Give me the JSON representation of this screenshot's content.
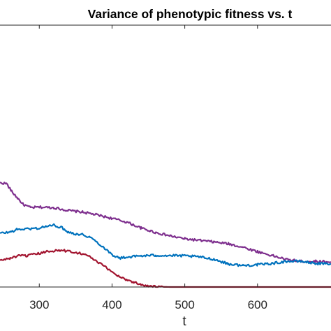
{
  "chart_data": {
    "type": "line",
    "title": "Variance of phenotypic fitness vs. t",
    "xlabel": "t",
    "ylabel": "",
    "xlim": [
      246,
      701
    ],
    "ylim": [
      0,
      1
    ],
    "x_ticks": [
      300,
      400,
      500,
      600
    ],
    "x_tick_labels": [
      "300",
      "400",
      "500",
      "600"
    ],
    "grid": false,
    "legend": "none",
    "series": [
      {
        "color": "#7E2F8E",
        "points": [
          [
            246,
            0.398
          ],
          [
            255,
            0.395
          ],
          [
            262,
            0.365
          ],
          [
            270,
            0.34
          ],
          [
            278,
            0.315
          ],
          [
            288,
            0.303
          ],
          [
            300,
            0.305
          ],
          [
            320,
            0.303
          ],
          [
            340,
            0.292
          ],
          [
            360,
            0.286
          ],
          [
            380,
            0.275
          ],
          [
            400,
            0.262
          ],
          [
            420,
            0.248
          ],
          [
            440,
            0.225
          ],
          [
            460,
            0.208
          ],
          [
            480,
            0.195
          ],
          [
            500,
            0.184
          ],
          [
            520,
            0.178
          ],
          [
            540,
            0.172
          ],
          [
            560,
            0.165
          ],
          [
            580,
            0.152
          ],
          [
            600,
            0.135
          ],
          [
            620,
            0.12
          ],
          [
            640,
            0.105
          ],
          [
            660,
            0.098
          ],
          [
            680,
            0.098
          ],
          [
            701,
            0.096
          ]
        ]
      },
      {
        "color": "#0072BD",
        "points": [
          [
            246,
            0.205
          ],
          [
            260,
            0.21
          ],
          [
            270,
            0.22
          ],
          [
            285,
            0.222
          ],
          [
            300,
            0.225
          ],
          [
            310,
            0.232
          ],
          [
            320,
            0.236
          ],
          [
            330,
            0.228
          ],
          [
            340,
            0.21
          ],
          [
            350,
            0.203
          ],
          [
            360,
            0.2
          ],
          [
            370,
            0.19
          ],
          [
            380,
            0.17
          ],
          [
            390,
            0.148
          ],
          [
            400,
            0.124
          ],
          [
            410,
            0.11
          ],
          [
            420,
            0.114
          ],
          [
            440,
            0.119
          ],
          [
            460,
            0.121
          ],
          [
            480,
            0.12
          ],
          [
            500,
            0.119
          ],
          [
            520,
            0.115
          ],
          [
            540,
            0.106
          ],
          [
            560,
            0.088
          ],
          [
            580,
            0.082
          ],
          [
            600,
            0.085
          ],
          [
            620,
            0.09
          ],
          [
            640,
            0.098
          ],
          [
            660,
            0.098
          ],
          [
            680,
            0.09
          ],
          [
            701,
            0.088
          ]
        ]
      },
      {
        "color": "#A2142F",
        "points": [
          [
            246,
            0.101
          ],
          [
            260,
            0.11
          ],
          [
            270,
            0.118
          ],
          [
            285,
            0.12
          ],
          [
            300,
            0.128
          ],
          [
            315,
            0.138
          ],
          [
            330,
            0.14
          ],
          [
            345,
            0.135
          ],
          [
            360,
            0.127
          ],
          [
            370,
            0.115
          ],
          [
            380,
            0.095
          ],
          [
            390,
            0.078
          ],
          [
            400,
            0.058
          ],
          [
            410,
            0.04
          ],
          [
            420,
            0.028
          ],
          [
            430,
            0.018
          ],
          [
            440,
            0.01
          ],
          [
            450,
            0.004
          ],
          [
            460,
            0.001
          ],
          [
            480,
            0
          ],
          [
            500,
            0
          ],
          [
            550,
            0
          ],
          [
            600,
            0
          ],
          [
            650,
            0
          ],
          [
            701,
            0
          ]
        ]
      }
    ]
  }
}
